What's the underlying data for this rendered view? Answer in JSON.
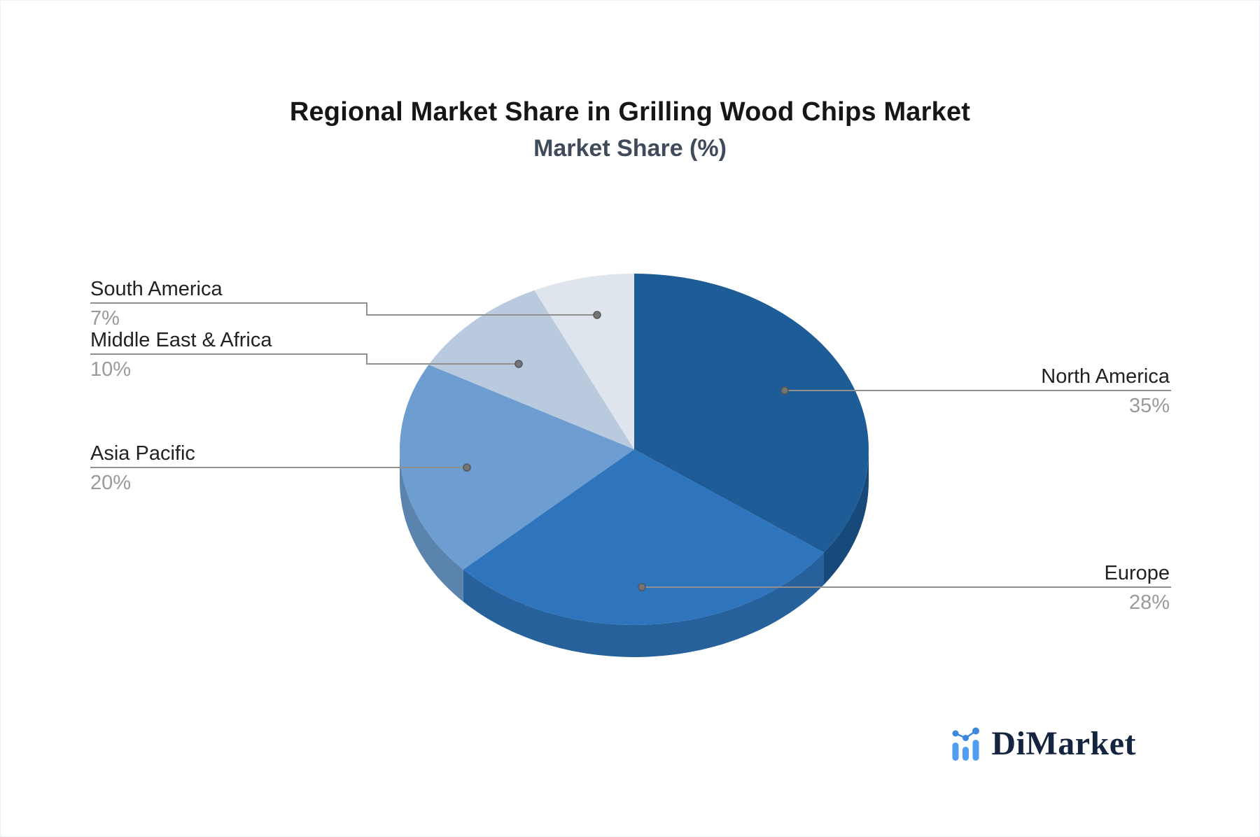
{
  "header": {
    "title": "Regional Market Share in Grilling Wood Chips Market",
    "subtitle": "Market Share (%)"
  },
  "watermark": {
    "brand": "DiMarket",
    "icon": "bar-line-chart-icon",
    "accent_color": "#4f9ef1",
    "dot_color": "#3c86e0",
    "text_color": "#15253f"
  },
  "chart_data": {
    "type": "pie",
    "style": "3d-pie",
    "title": "Regional Market Share in Grilling Wood Chips Market",
    "subtitle": "Market Share (%)",
    "unit": "%",
    "legend_position": "callout-labels",
    "label_color": "#222222",
    "value_color": "#9a9a9a",
    "leader_line_color": "#909090",
    "background": "#ffffff",
    "slices": [
      {
        "label": "North America",
        "value": 35,
        "value_label": "35%",
        "color": "#1e5c97",
        "side_color": "#174a7b"
      },
      {
        "label": "Europe",
        "value": 28,
        "value_label": "28%",
        "color": "#2e75bd",
        "side_color": "#26619c"
      },
      {
        "label": "Asia Pacific",
        "value": 20,
        "value_label": "20%",
        "color": "#6d9dd1",
        "side_color": "#5a83ad"
      },
      {
        "label": "Middle East & Africa",
        "value": 10,
        "value_label": "10%",
        "color": "#b9c9de",
        "side_color": "#9fb2c6"
      },
      {
        "label": "South America",
        "value": 7,
        "value_label": "7%",
        "color": "#dfe5ed",
        "side_color": "#c6cdd8"
      }
    ]
  }
}
